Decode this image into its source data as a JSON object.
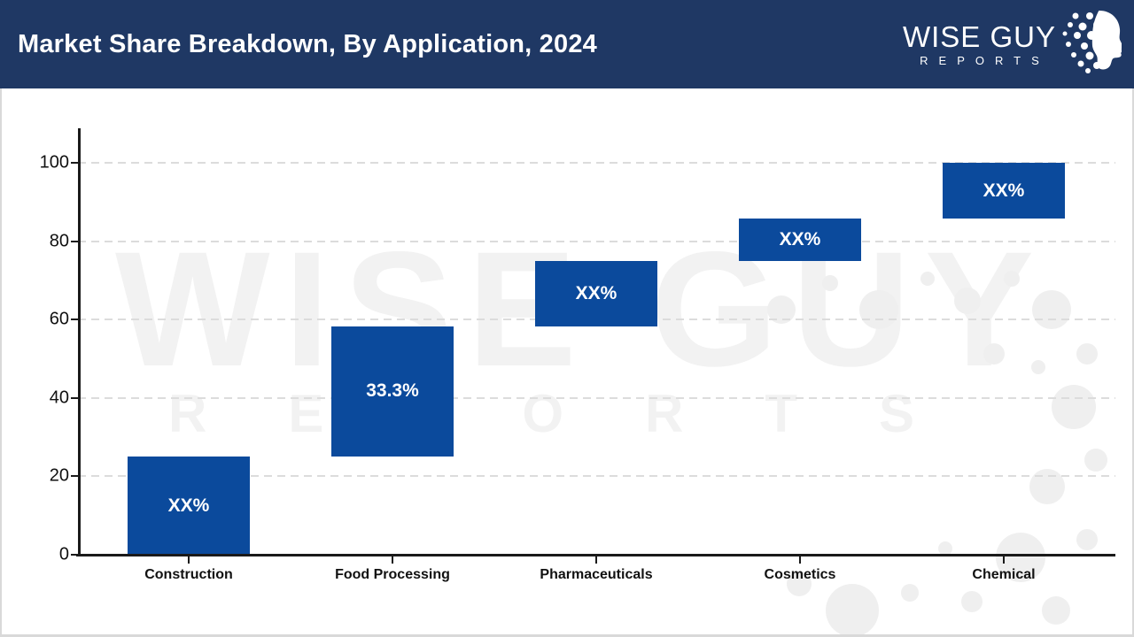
{
  "header": {
    "title": "Market Share Breakdown, By Application, 2024",
    "bg_color": "#1f3864",
    "logo": {
      "line1": "WISE GUY",
      "line2": "REPORTS"
    }
  },
  "watermark": {
    "line1": "WISE GUY",
    "line2": "REPORTS"
  },
  "chart_data": {
    "type": "bar",
    "subtype": "waterfall",
    "title": "Market Share Breakdown, By Application, 2024",
    "categories": [
      "Construction",
      "Food Processing",
      "Pharmaceuticals",
      "Cosmetics",
      "Chemical"
    ],
    "segments": [
      {
        "category": "Construction",
        "start": 0,
        "end": 25,
        "label": "XX%"
      },
      {
        "category": "Food Processing",
        "start": 25,
        "end": 58.3,
        "label": "33.3%"
      },
      {
        "category": "Pharmaceuticals",
        "start": 58.3,
        "end": 75,
        "label": "XX%"
      },
      {
        "category": "Cosmetics",
        "start": 75,
        "end": 85.7,
        "label": "XX%"
      },
      {
        "category": "Chemical",
        "start": 85.7,
        "end": 100,
        "label": "XX%"
      }
    ],
    "xlabel": "",
    "ylabel": "",
    "ylim": [
      0,
      100
    ],
    "yticks": [
      0,
      20,
      40,
      60,
      80,
      100
    ],
    "grid": "horizontal-dashed",
    "legend": "none",
    "bar_color": "#0b4a9c",
    "grid_color": "#dcdcdc",
    "axis_color": "#1a1a1a",
    "bar_label_color": "#ffffff"
  }
}
